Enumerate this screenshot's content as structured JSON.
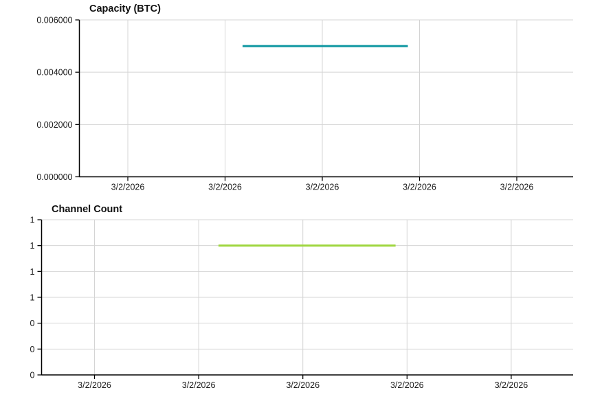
{
  "page": {
    "background": "#ffffff"
  },
  "styles": {
    "grid_color": "#d4d4d4",
    "axis_color": "#000000",
    "label_color": "#1a1a1a",
    "title_color": "#111111"
  },
  "chart_data": [
    {
      "type": "line",
      "title": "Capacity (BTC)",
      "xlabel": "",
      "ylabel": "",
      "x_tick_labels": [
        "3/2/2026",
        "3/2/2026",
        "3/2/2026",
        "3/2/2026",
        "3/2/2026"
      ],
      "y_tick_labels": [
        "0.006000",
        "0.004000",
        "0.002000",
        "0.000000"
      ],
      "ylim": [
        0,
        0.006
      ],
      "grid": true,
      "legend": false,
      "series": [
        {
          "name": "Capacity (BTC)",
          "color": "#0d96a1",
          "points": [
            {
              "x_tick": 1.18,
              "y": 0.005
            },
            {
              "x_tick": 2.88,
              "y": 0.005
            }
          ]
        }
      ]
    },
    {
      "type": "line",
      "title": "Channel Count",
      "xlabel": "",
      "ylabel": "",
      "x_tick_labels": [
        "3/2/2026",
        "3/2/2026",
        "3/2/2026",
        "3/2/2026",
        "3/2/2026"
      ],
      "y_tick_labels": [
        "1",
        "1",
        "1",
        "1",
        "0",
        "0",
        "0"
      ],
      "ylim": [
        0,
        1.2
      ],
      "grid": true,
      "legend": false,
      "series": [
        {
          "name": "Channel Count",
          "color": "#9ed63d",
          "points": [
            {
              "x_tick": 1.19,
              "y": 1
            },
            {
              "x_tick": 2.89,
              "y": 1
            }
          ]
        }
      ]
    }
  ]
}
